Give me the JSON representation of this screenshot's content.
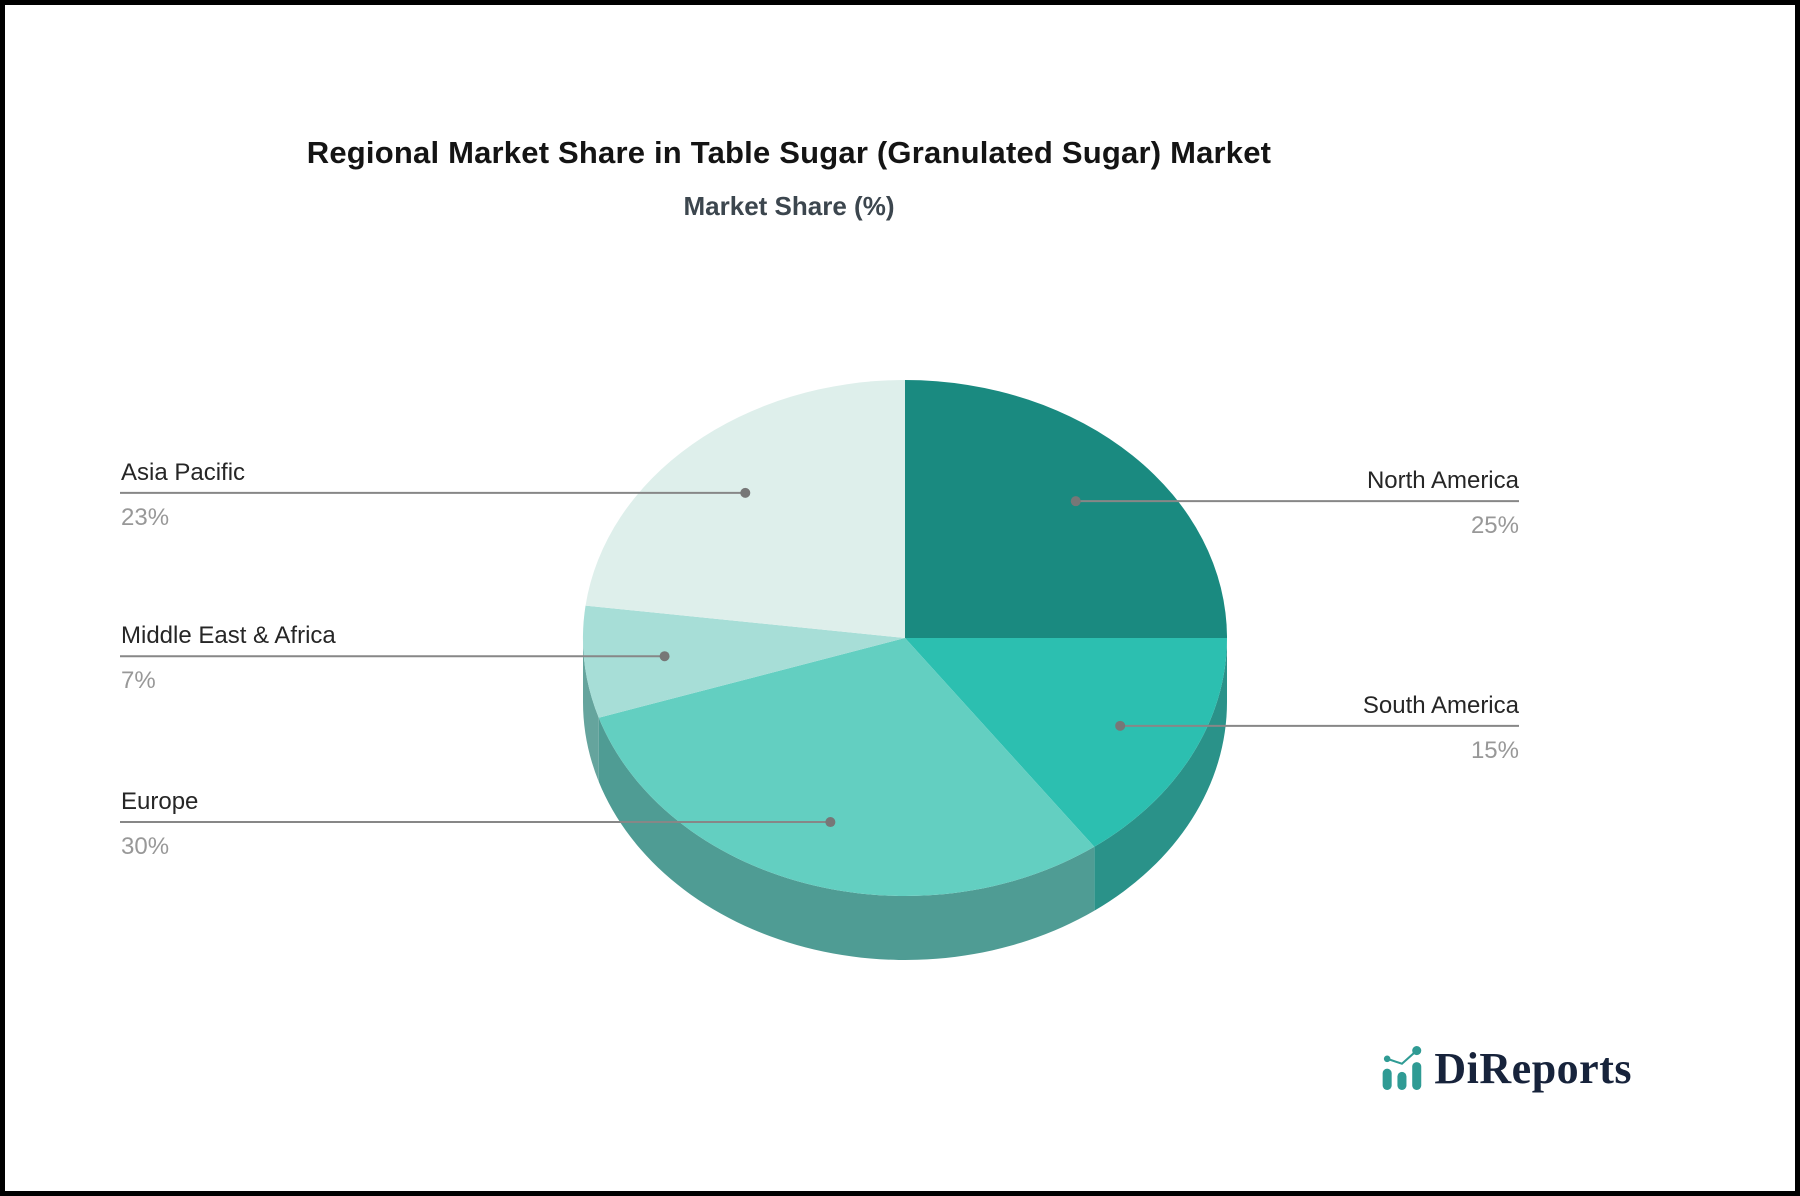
{
  "title": "Regional Market Share in Table Sugar (Granulated Sugar) Market",
  "subtitle": "Market Share (%)",
  "logo": {
    "text": "DiReports",
    "icon": "bar-chart-trend-icon",
    "icon_color": "#2f9b94",
    "text_color": "#17233b"
  },
  "chart_data": {
    "type": "pie",
    "title": "Regional Market Share in Table Sugar (Granulated Sugar) Market",
    "subtitle": "Market Share (%)",
    "unit": "%",
    "style": "3d",
    "direction": "clockwise",
    "start_angle_deg": 0,
    "label_position": "outside-leader-lines",
    "slices": [
      {
        "label": "North America",
        "value": 25,
        "color": "#1a8a80"
      },
      {
        "label": "South America",
        "value": 15,
        "color": "#2cbfb0"
      },
      {
        "label": "Europe",
        "value": 30,
        "color": "#63cfc1"
      },
      {
        "label": "Middle East & Africa",
        "value": 7,
        "color": "#a7ded7"
      },
      {
        "label": "Asia Pacific",
        "value": 23,
        "color": "#deefeb"
      }
    ],
    "side_colors": {
      "South America": "#2a9289",
      "Europe": "#4f9c94",
      "Middle East & Africa": "#65a49d"
    },
    "leader_line_color": "#878787",
    "leader_dot_color": "#777777",
    "label_color": "#262626",
    "percent_color": "#989898"
  }
}
